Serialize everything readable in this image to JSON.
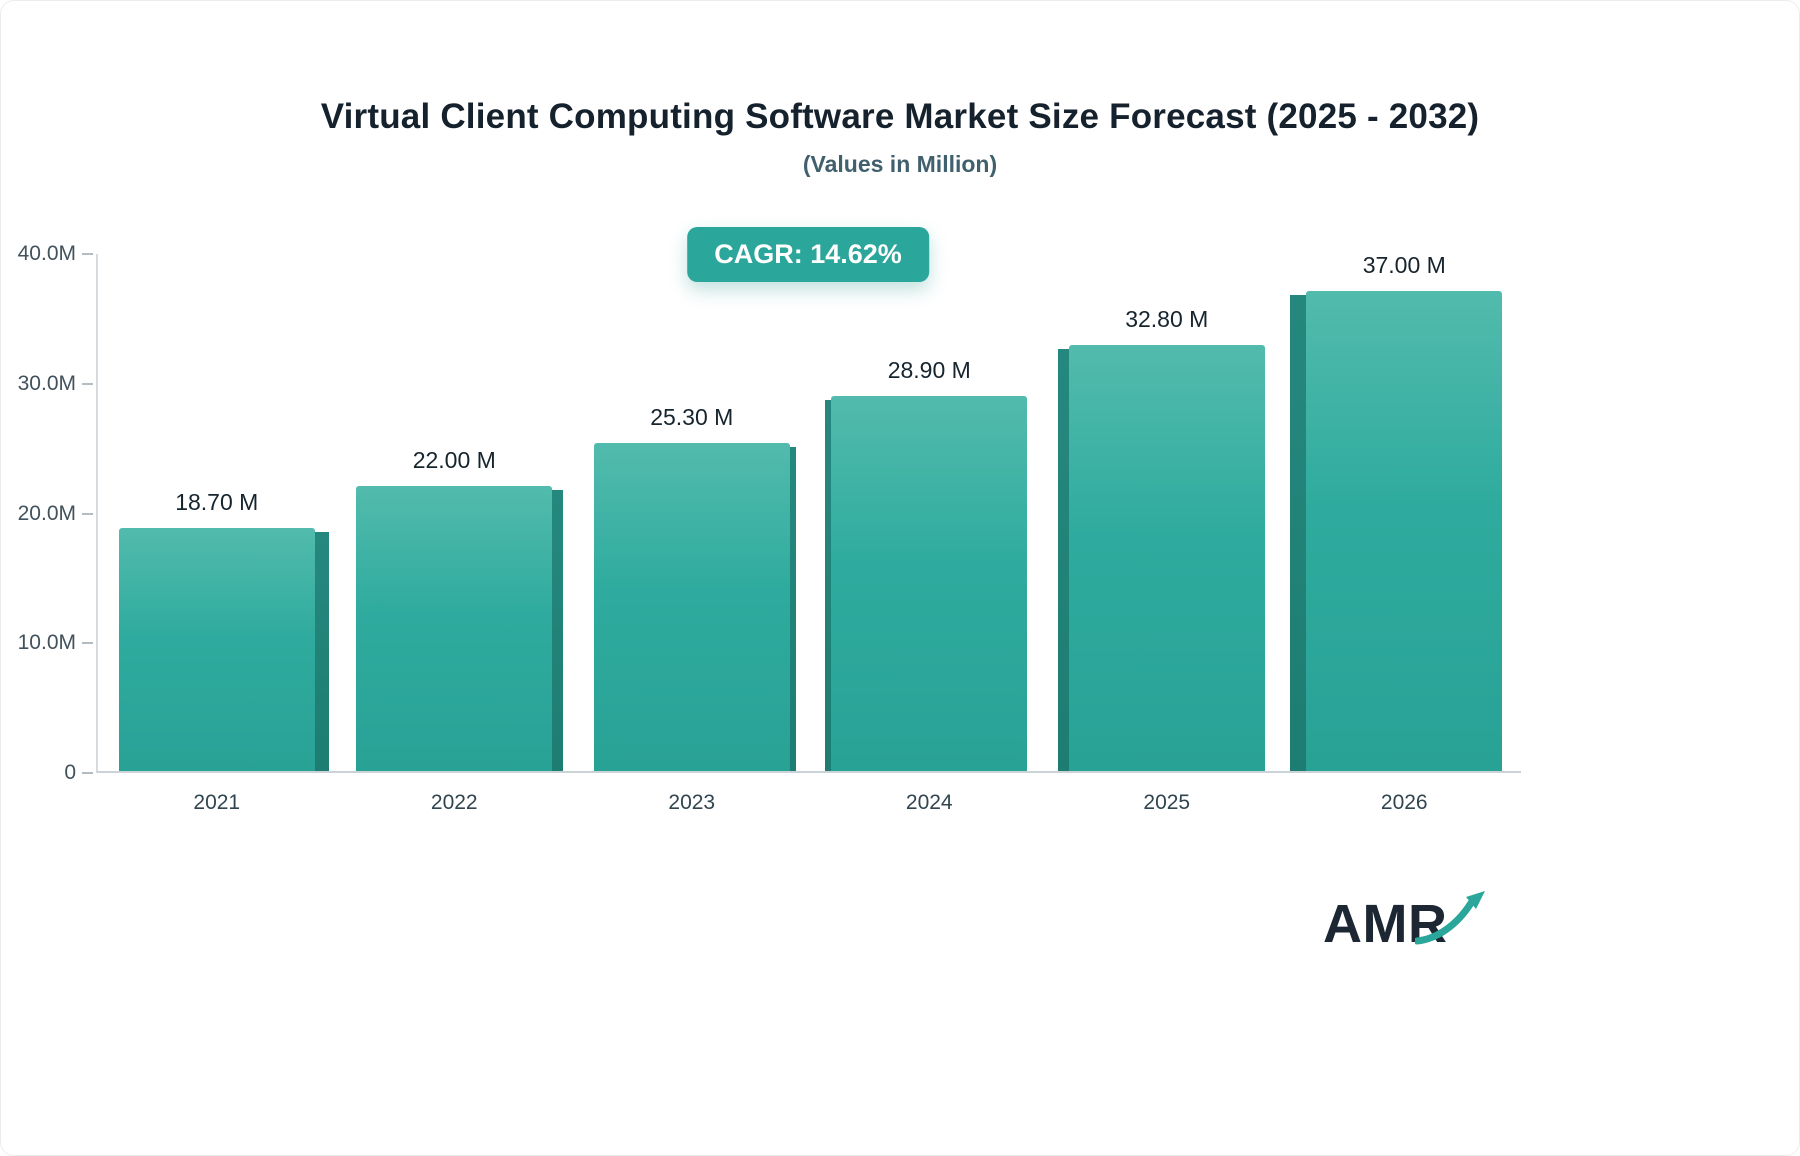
{
  "title": "Virtual Client Computing Software Market Size Forecast (2025 - 2032)",
  "subtitle": "(Values in Million)",
  "badge": {
    "label": "CAGR: 14.62%"
  },
  "logo": {
    "text": "AMR"
  },
  "colors": {
    "accent": "#2ba69b",
    "bar_top": "#52bbad",
    "bar_bottom": "#29a296",
    "bar_side": "#1e7d73",
    "title_text": "#15222d",
    "subtitle_text": "#41606e",
    "axis_text": "#42525c"
  },
  "chart_data": {
    "type": "bar",
    "categories": [
      "2021",
      "2022",
      "2023",
      "2024",
      "2025",
      "2026"
    ],
    "values": [
      18.7,
      22.0,
      25.3,
      28.9,
      32.8,
      37.0
    ],
    "value_labels": [
      "18.70 M",
      "22.00 M",
      "25.30 M",
      "28.90 M",
      "32.80 M",
      "37.00 M"
    ],
    "title": "Virtual Client Computing Software Market Size Forecast (2025 - 2032)",
    "subtitle": "(Values in Million)",
    "xlabel": "",
    "ylabel": "",
    "ylim": [
      0,
      40
    ],
    "yticks": [
      0,
      10,
      20,
      30,
      40
    ],
    "ytick_labels": [
      "0",
      "10.0M",
      "20.0M",
      "30.0M",
      "40.0M"
    ],
    "grid": false,
    "legend": false,
    "annotation": "CAGR: 14.62%"
  }
}
